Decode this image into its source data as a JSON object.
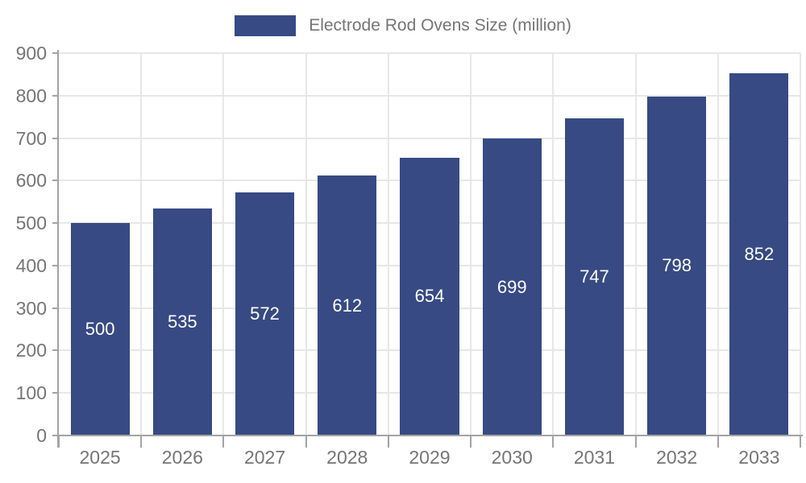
{
  "chart_data": {
    "type": "bar",
    "title": "Electrode Rod Ovens Size (million)",
    "categories": [
      "2025",
      "2026",
      "2027",
      "2028",
      "2029",
      "2030",
      "2031",
      "2032",
      "2033"
    ],
    "values": [
      500,
      535,
      572,
      612,
      654,
      699,
      747,
      798,
      852
    ],
    "value_labels": [
      "500",
      "535",
      "572",
      "612",
      "654",
      "699",
      "747",
      "798",
      "852"
    ],
    "ylim": [
      0,
      900
    ],
    "ytick_step": 100,
    "ytick_labels": [
      "0",
      "100",
      "200",
      "300",
      "400",
      "500",
      "600",
      "700",
      "800",
      "900"
    ],
    "xlabel": "",
    "ylabel": "",
    "grid": true,
    "legend_position": "top-center",
    "colors": {
      "bar": "#374a84",
      "bar_value_text": "#ffffff",
      "grid": "#e7e7e7",
      "axis": "#a3a3a3",
      "tick_label": "#757575",
      "legend_text": "#757575",
      "background": "#ffffff"
    }
  }
}
